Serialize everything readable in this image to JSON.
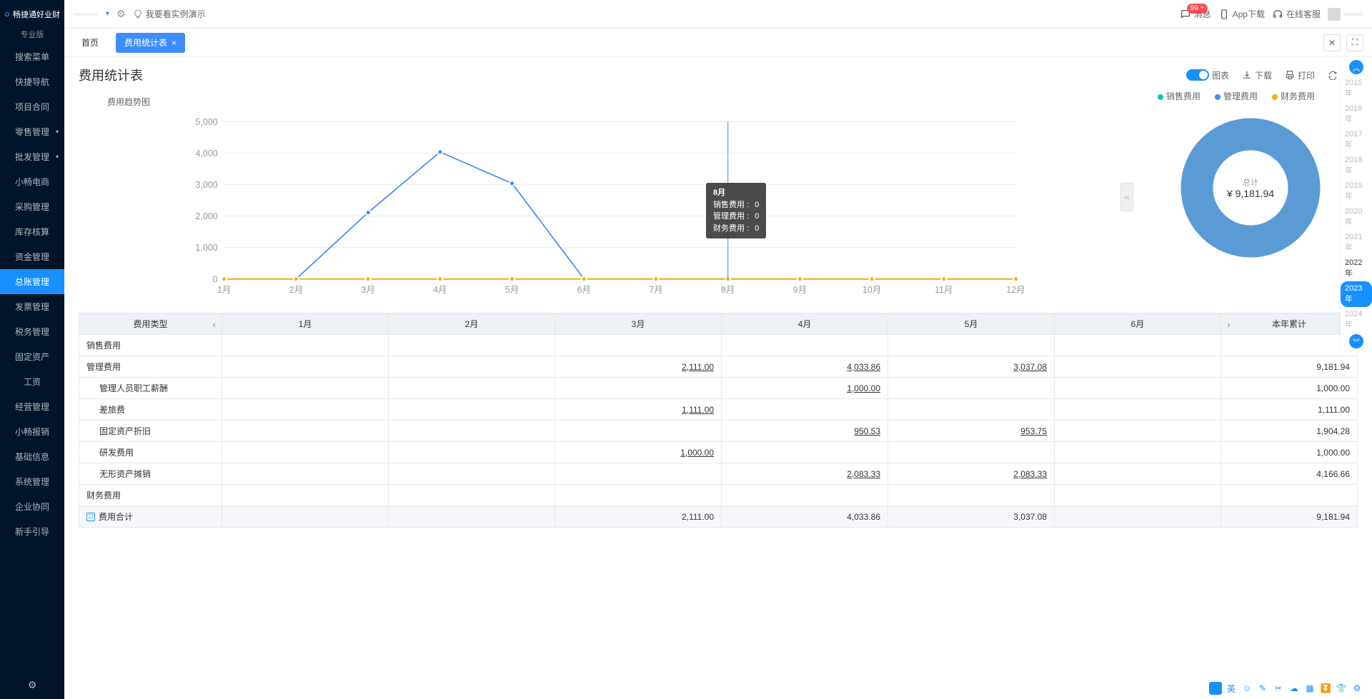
{
  "brand": {
    "name": "畅捷通好业财",
    "version": "专业版"
  },
  "sidebar": {
    "items": [
      {
        "label": "搜索菜单",
        "chev": false
      },
      {
        "label": "快捷导航",
        "chev": false
      },
      {
        "label": "项目合同",
        "chev": false
      },
      {
        "label": "零售管理",
        "chev": true
      },
      {
        "label": "批发管理",
        "chev": true
      },
      {
        "label": "小畅电商",
        "chev": false
      },
      {
        "label": "采购管理",
        "chev": false
      },
      {
        "label": "库存核算",
        "chev": false
      },
      {
        "label": "资金管理",
        "chev": false
      },
      {
        "label": "总账管理",
        "chev": false,
        "active": true
      },
      {
        "label": "发票管理",
        "chev": false
      },
      {
        "label": "税务管理",
        "chev": false
      },
      {
        "label": "固定资产",
        "chev": false
      },
      {
        "label": "工资",
        "chev": false
      },
      {
        "label": "经营管理",
        "chev": false
      },
      {
        "label": "小畅报销",
        "chev": false
      },
      {
        "label": "基础信息",
        "chev": false
      },
      {
        "label": "系统管理",
        "chev": false
      },
      {
        "label": "企业协同",
        "chev": false
      },
      {
        "label": "新手引导",
        "chev": false
      }
    ]
  },
  "topbar": {
    "company": "",
    "demo": "我要看实例演示",
    "messages": {
      "label": "消息",
      "badge": "99 +"
    },
    "app": "App下载",
    "service": "在线客服",
    "username": ""
  },
  "tabs": {
    "home": "首页",
    "active": "费用统计表"
  },
  "page": {
    "title": "费用统计表",
    "toggle_label": "图表",
    "download": "下载",
    "print": "打印",
    "refresh": "刷新"
  },
  "chart": {
    "title": "费用趋势图",
    "legend": [
      {
        "label": "销售费用",
        "color": "#13c2c2"
      },
      {
        "label": "管理费用",
        "color": "#3f8cff"
      },
      {
        "label": "财务费用",
        "color": "#faad14"
      }
    ],
    "x_labels": [
      "1月",
      "2月",
      "3月",
      "4月",
      "5月",
      "6月",
      "7月",
      "8月",
      "9月",
      "10月",
      "11月",
      "12月"
    ],
    "y_ticks": [
      0,
      1000,
      2000,
      3000,
      4000,
      5000
    ],
    "y_max": 5000,
    "series": {
      "sales": [
        0,
        0,
        0,
        0,
        0,
        0,
        0,
        0,
        0,
        0,
        0,
        0
      ],
      "admin": [
        0,
        0,
        2111,
        4034,
        3037,
        0,
        0,
        0,
        0,
        0,
        0,
        0
      ],
      "finance": [
        0,
        0,
        0,
        0,
        0,
        0,
        0,
        0,
        0,
        0,
        0,
        0
      ]
    },
    "cursor_month_index": 7,
    "tooltip": {
      "title": "8月",
      "rows": [
        {
          "k": "销售费用",
          "v": "0"
        },
        {
          "k": "管理费用",
          "v": "0"
        },
        {
          "k": "财务费用",
          "v": "0"
        }
      ]
    },
    "colors": {
      "grid": "#eeeeee",
      "axis": "#999999"
    }
  },
  "donut": {
    "label": "总计",
    "value": "¥ 9,181.94",
    "color": "#5b9bd5",
    "inner_color": "#ffffff"
  },
  "years": {
    "list": [
      "2015年",
      "2016年",
      "2017年",
      "2018年",
      "2019年",
      "2020年",
      "2021年",
      "2022年",
      "2023年",
      "2024年"
    ],
    "current": "2022年",
    "selected": "2023年"
  },
  "table": {
    "header_type": "费用类型",
    "months": [
      "1月",
      "2月",
      "3月",
      "4月",
      "5月",
      "6月"
    ],
    "header_total": "本年累计",
    "rows": [
      {
        "label": "销售费用",
        "indent": 0,
        "values": [
          "",
          "",
          "",
          "",
          "",
          ""
        ],
        "total": "",
        "link": false
      },
      {
        "label": "管理费用",
        "indent": 0,
        "values": [
          "",
          "",
          "2,111.00",
          "4,033.86",
          "3,037.08",
          ""
        ],
        "total": "9,181.94",
        "link": true
      },
      {
        "label": "管理人员职工薪酬",
        "indent": 1,
        "values": [
          "",
          "",
          "",
          "1,000.00",
          "",
          ""
        ],
        "total": "1,000.00",
        "link": true
      },
      {
        "label": "差旅费",
        "indent": 1,
        "values": [
          "",
          "",
          "1,111.00",
          "",
          "",
          ""
        ],
        "total": "1,111.00",
        "link": true
      },
      {
        "label": "固定资产折旧",
        "indent": 1,
        "values": [
          "",
          "",
          "",
          "950.53",
          "953.75",
          ""
        ],
        "total": "1,904.28",
        "link": true
      },
      {
        "label": "研发费用",
        "indent": 1,
        "values": [
          "",
          "",
          "1,000.00",
          "",
          "",
          ""
        ],
        "total": "1,000.00",
        "link": true
      },
      {
        "label": "无形资产摊销",
        "indent": 1,
        "values": [
          "",
          "",
          "",
          "2,083.33",
          "2,083.33",
          ""
        ],
        "total": "4,166.66",
        "link": true
      },
      {
        "label": "财务费用",
        "indent": 0,
        "values": [
          "",
          "",
          "",
          "",
          "",
          ""
        ],
        "total": "",
        "link": false
      }
    ],
    "total_row": {
      "label": "费用合计",
      "values": [
        "",
        "",
        "2,111.00",
        "4,033.86",
        "3,037.08",
        ""
      ],
      "total": "9,181.94"
    }
  },
  "ime": {
    "main": "王",
    "lang": "英"
  }
}
